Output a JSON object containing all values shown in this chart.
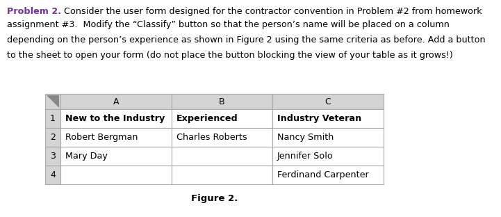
{
  "title_bold": "Problem 2.",
  "title_bold_color": "#7030A0",
  "title_normal": " Consider the user form designed for the contractor convention in Problem #2 from homework\nassignment #3.  Modify the “Classify” button so that the person’s name will be placed on a column\ndepending on the person’s experience as shown in Figure 2 using the same criteria as before. Add a button\nto the sheet to open your form (do not place the button blocking the view of your table as it grows!)",
  "title_normal_color": "#000000",
  "title_fontsize": 9.2,
  "figure_label": "Figure 2.",
  "figure_label_fontsize": 9.5,
  "background_color": "#ffffff",
  "table": {
    "col_headers": [
      "A",
      "B",
      "C"
    ],
    "row_numbers": [
      "1",
      "2",
      "3",
      "4"
    ],
    "header_bg": "#d4d4d4",
    "cell_bg": "#ffffff",
    "border_color": "#aaaaaa",
    "row_num_bg": "#d4d4d4",
    "data": [
      [
        "New to the Industry",
        "Experienced",
        "Industry Veteran"
      ],
      [
        "Robert Bergman",
        "Charles Roberts",
        "Nancy Smith"
      ],
      [
        "Mary Day",
        "",
        "Jennifer Solo"
      ],
      [
        "",
        "",
        "Ferdinand Carpenter"
      ]
    ]
  }
}
